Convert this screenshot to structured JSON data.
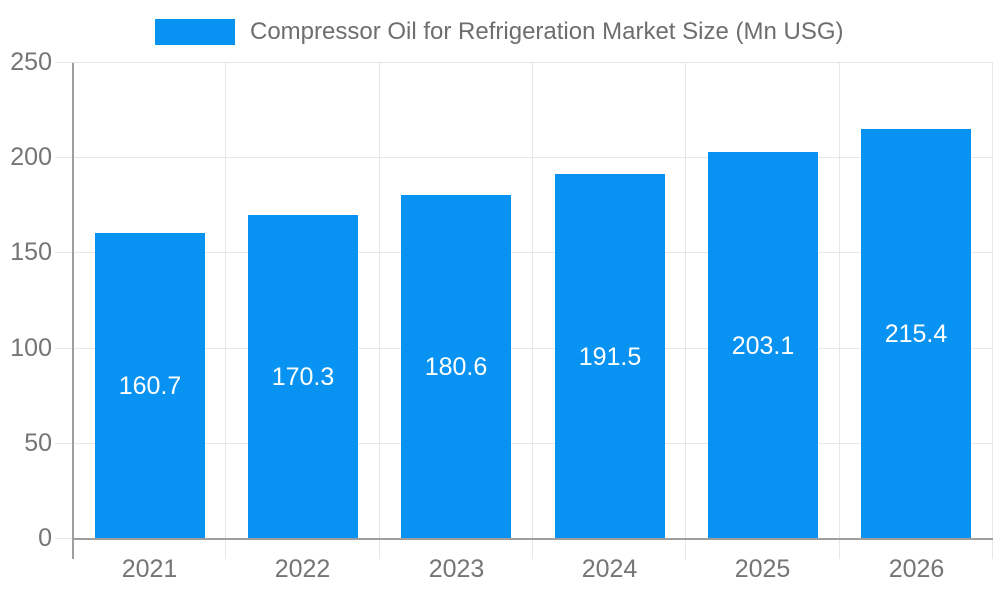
{
  "chart_data": {
    "type": "bar",
    "title": "Compressor Oil for Refrigeration Market Size (Mn USG)",
    "series_name": "Compressor Oil for Refrigeration Market Size (Mn USG)",
    "categories": [
      "2021",
      "2022",
      "2023",
      "2024",
      "2025",
      "2026"
    ],
    "values": [
      160.7,
      170.3,
      180.6,
      191.5,
      203.1,
      215.4
    ],
    "value_labels": [
      "160.7",
      "170.3",
      "180.6",
      "191.5",
      "203.1",
      "215.4"
    ],
    "xlabel": "",
    "ylabel": "",
    "ylim": [
      0,
      250
    ],
    "yticks": [
      0,
      50,
      100,
      150,
      200,
      250
    ],
    "grid": true,
    "legend_position": "top",
    "colors": {
      "bar": "#0892f2",
      "value_label": "#ffffff",
      "axis_label": "#757575",
      "legend_label": "#6e6e6e",
      "grid": "#e6e6e6",
      "axis_line": "#9e9e9e"
    }
  }
}
